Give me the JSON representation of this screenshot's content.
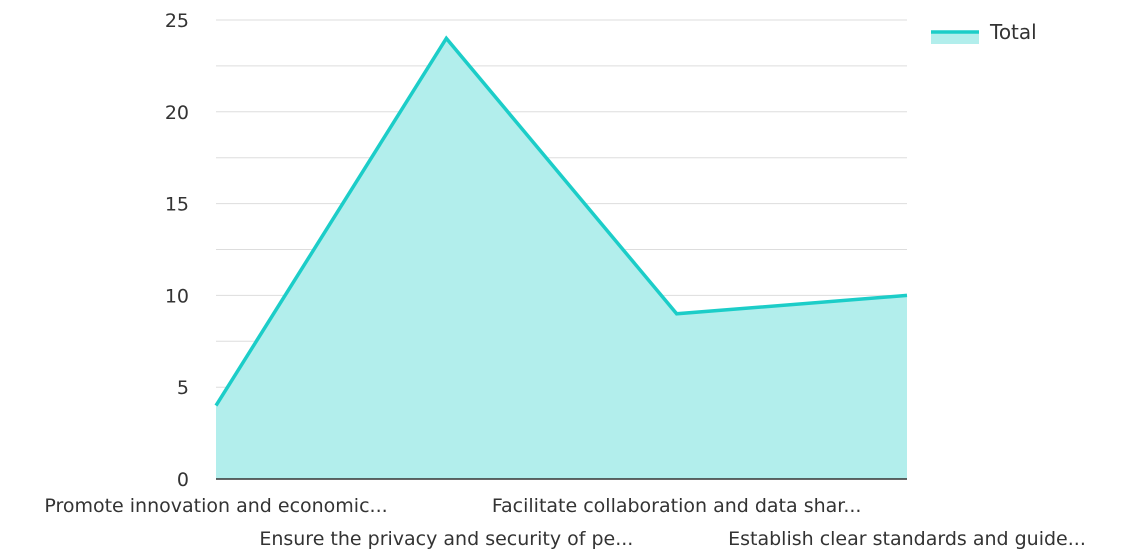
{
  "chart_data": {
    "type": "area",
    "categories": [
      "Promote innovation and economic...",
      "Ensure the privacy and security of pe...",
      "Facilitate collaboration and data shar...",
      "Establish clear standards and guide..."
    ],
    "series": [
      {
        "name": "Total",
        "values": [
          4,
          24,
          9,
          10
        ]
      }
    ],
    "ylim": [
      0,
      25
    ],
    "yticks": [
      0,
      5,
      10,
      15,
      20,
      25
    ],
    "grid": true,
    "legend_position": "top-right",
    "colors": {
      "line": "#1ccdc8",
      "fill": "#b2eeec",
      "grid": "#dddddd",
      "axis": "#333333"
    }
  }
}
